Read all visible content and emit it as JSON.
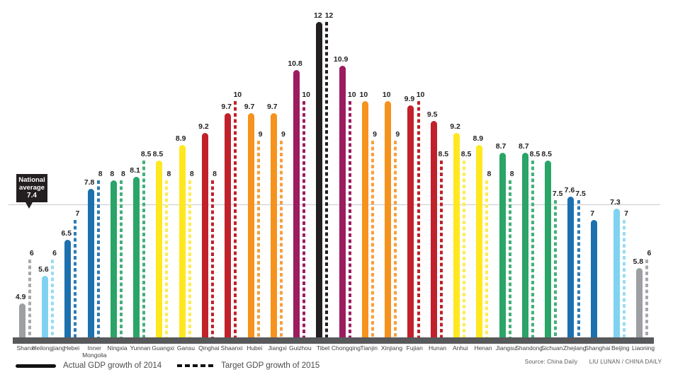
{
  "chart_data": {
    "type": "bar",
    "legend": {
      "actual_label": "Actual GDP growth of 2014",
      "target_label": "Target GDP growth of 2015"
    },
    "national_average": {
      "value": 7.4,
      "lines": [
        "National",
        "average",
        "7.4"
      ]
    },
    "series": [
      {
        "name": "Actual GDP growth of 2014",
        "style": "solid"
      },
      {
        "name": "Target GDP growth of 2015",
        "style": "dashed"
      }
    ],
    "axis_baseline_note": "bars truncated below ~4.2, no visible y-axis",
    "provinces": [
      {
        "name": "Shanxi",
        "actual": 4.9,
        "target": 6,
        "color": "#9d9fa2",
        "dash_color": "#a7a9ac"
      },
      {
        "name": "Heilongjiang",
        "actual": 5.6,
        "target": 6,
        "color": "#7fd3f1",
        "dash_color": "#99dcf4"
      },
      {
        "name": "Hebei",
        "actual": 6.5,
        "target": 7,
        "color": "#1c70ae",
        "dash_color": "#2e7cb4"
      },
      {
        "name": "Inner Mongolia",
        "actual": 7.8,
        "target": 8,
        "color": "#1c70ae",
        "dash_color": "#2e7cb4"
      },
      {
        "name": "Ningxia",
        "actual": 8,
        "target": 8,
        "color": "#2aa567",
        "dash_color": "#44b078"
      },
      {
        "name": "Yunnan",
        "actual": 8.1,
        "target": 8.5,
        "color": "#2aa567",
        "dash_color": "#44b078"
      },
      {
        "name": "Guangxi",
        "actual": 8.5,
        "target": 8,
        "color": "#ffe81f",
        "dash_color": "#fdec55"
      },
      {
        "name": "Gansu",
        "actual": 8.9,
        "target": 8,
        "color": "#ffe81f",
        "dash_color": "#fdec55"
      },
      {
        "name": "Qinghai",
        "actual": 9.2,
        "target": 8,
        "color": "#c1212b",
        "dash_color": "#c1212b"
      },
      {
        "name": "Shaanxi",
        "actual": 9.7,
        "target": 10,
        "color": "#c1212b",
        "dash_color": "#c1212b"
      },
      {
        "name": "Hubei",
        "actual": 9.7,
        "target": 9,
        "color": "#f6921e",
        "dash_color": "#f7a041"
      },
      {
        "name": "Jiangxi",
        "actual": 9.7,
        "target": 9,
        "color": "#f6921e",
        "dash_color": "#f7a041"
      },
      {
        "name": "Guizhou",
        "actual": 10.8,
        "target": 10,
        "color": "#9c1c60",
        "dash_color": "#9c1c60"
      },
      {
        "name": "Tibet",
        "actual": 12,
        "target": 12,
        "color": "#231f20",
        "dash_color": "#231f20"
      },
      {
        "name": "Chongqing",
        "actual": 10.9,
        "target": 10,
        "color": "#9c1c60",
        "dash_color": "#9c1c60"
      },
      {
        "name": "Tianjin",
        "actual": 10,
        "target": 9,
        "color": "#f6921e",
        "dash_color": "#f7a041"
      },
      {
        "name": "Xinjiang",
        "actual": 10,
        "target": 9,
        "color": "#f6921e",
        "dash_color": "#f7a041"
      },
      {
        "name": "Fujian",
        "actual": 9.9,
        "target": 10,
        "color": "#c1212b",
        "dash_color": "#c1212b"
      },
      {
        "name": "Hunan",
        "actual": 9.5,
        "target": 8.5,
        "color": "#c1212b",
        "dash_color": "#c1212b"
      },
      {
        "name": "Anhui",
        "actual": 9.2,
        "target": 8.5,
        "color": "#ffe81f",
        "dash_color": "#fdec55"
      },
      {
        "name": "Henan",
        "actual": 8.9,
        "target": 8,
        "color": "#ffe81f",
        "dash_color": "#fdec55"
      },
      {
        "name": "Jiangsu",
        "actual": 8.7,
        "target": 8,
        "color": "#2aa567",
        "dash_color": "#44b078"
      },
      {
        "name": "Shandong",
        "actual": 8.7,
        "target": 8.5,
        "color": "#2aa567",
        "dash_color": "#44b078"
      },
      {
        "name": "Sichuan",
        "actual": 8.5,
        "target": 7.5,
        "color": "#2aa567",
        "dash_color": "#44b078"
      },
      {
        "name": "Zhejiang",
        "actual": 7.6,
        "target": 7.5,
        "color": "#1c70ae",
        "dash_color": "#2e7cb4"
      },
      {
        "name": "Shanghai",
        "actual": 7,
        "target": null,
        "color": "#1c70ae",
        "dash_color": "#2e7cb4"
      },
      {
        "name": "Beijing",
        "actual": 7.3,
        "target": 7,
        "color": "#7fd3f1",
        "dash_color": "#99dcf4"
      },
      {
        "name": "Liaoning",
        "actual": 5.8,
        "target": 6,
        "color": "#9d9fa2",
        "dash_color": "#a7a9ac"
      }
    ]
  },
  "footer": {
    "source": "Source: China Daily",
    "credit": "LIU LUNAN / CHINA DAILY"
  }
}
